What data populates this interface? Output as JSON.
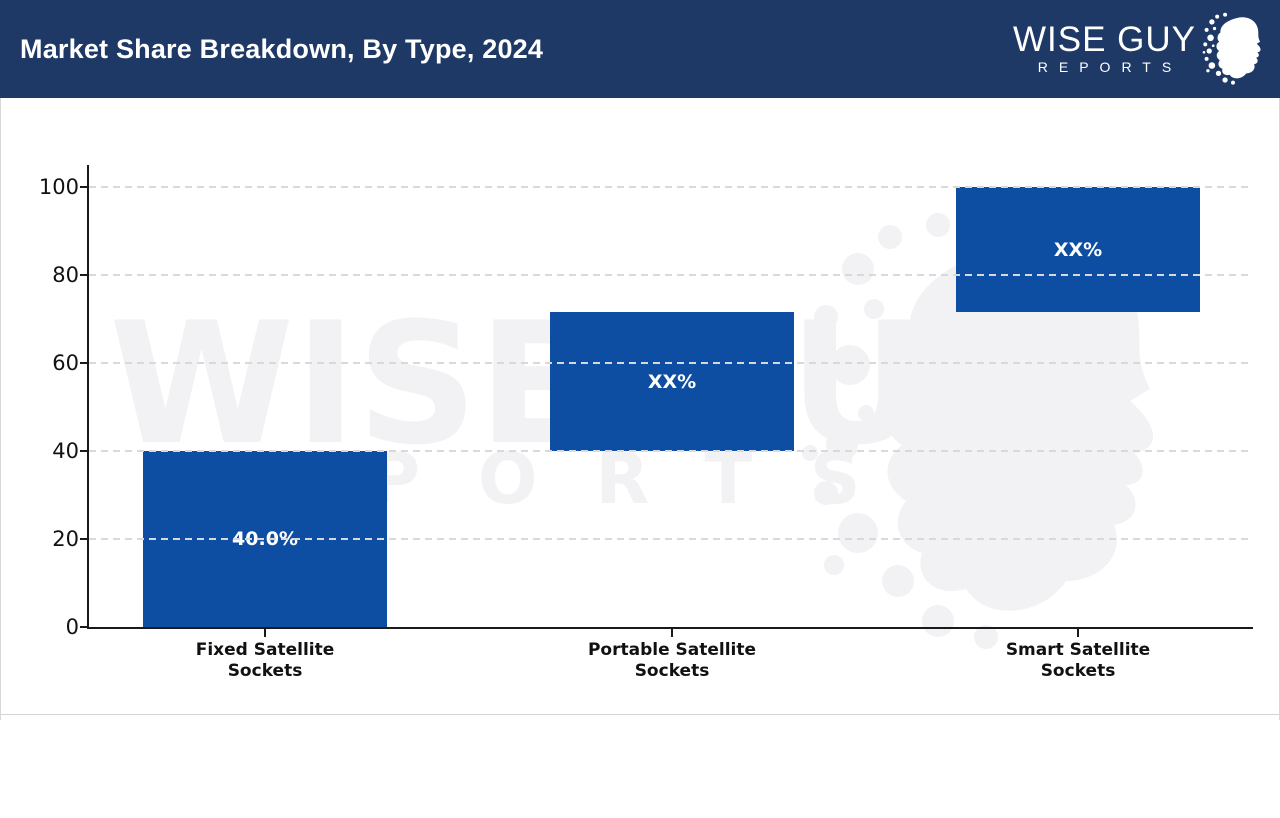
{
  "header": {
    "title": "Market Share Breakdown, By Type, 2024",
    "logo": {
      "line1": "WISE GUY",
      "line2": "REPORTS"
    }
  },
  "watermark": {
    "line1": "WISE GUY",
    "line2": "REPORTS"
  },
  "chart_data": {
    "type": "bar",
    "subtype": "floating-waterfall",
    "title": "Market Share Breakdown, By Type, 2024",
    "categories": [
      [
        "Fixed Satellite",
        "Sockets"
      ],
      [
        "Portable Satellite",
        "Sockets"
      ],
      [
        "Smart Satellite",
        "Sockets"
      ]
    ],
    "segments": [
      {
        "start": 0,
        "end": 40,
        "label": "40.0%"
      },
      {
        "start": 40,
        "end": 71.5,
        "label": "XX%"
      },
      {
        "start": 71.5,
        "end": 100,
        "label": "XX%"
      }
    ],
    "y_ticks": [
      0,
      20,
      40,
      60,
      80,
      100
    ],
    "ylim": [
      0,
      105
    ],
    "grid": "horizontal-dashed",
    "legend": "none",
    "bar_color": "#0d4da2",
    "bar_label_color": "#ffffff",
    "grid_color": "#d9d9d9",
    "axis_color": "#1a1a1a",
    "header_bg": "#1f3966",
    "watermark_color": "#f2f2f4"
  }
}
